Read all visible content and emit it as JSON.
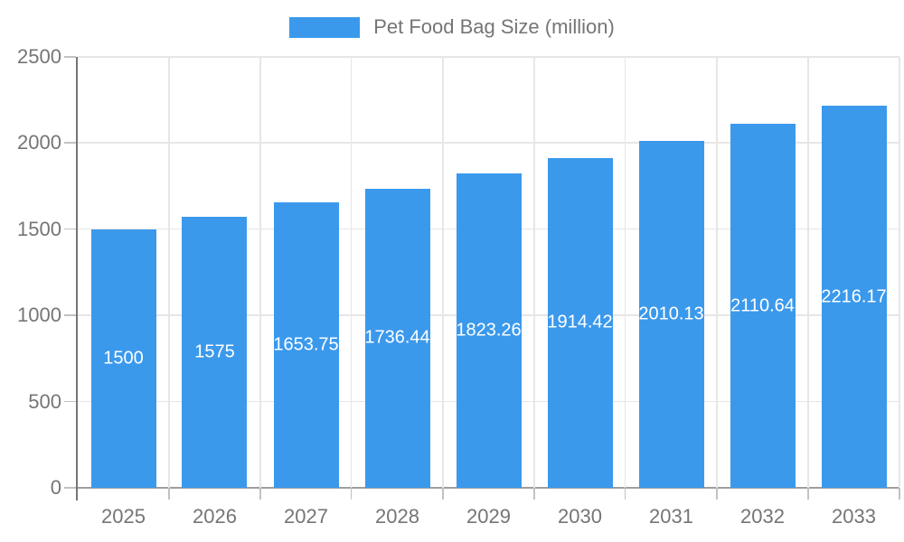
{
  "chart_data": {
    "type": "bar",
    "title": "",
    "legend": {
      "label": "Pet Food Bag Size (million)",
      "position": "top-center"
    },
    "categories": [
      "2025",
      "2026",
      "2027",
      "2028",
      "2029",
      "2030",
      "2031",
      "2032",
      "2033"
    ],
    "series": [
      {
        "name": "Pet Food Bag Size (million)",
        "values": [
          1500,
          1575,
          1653.75,
          1736.44,
          1823.26,
          1914.42,
          2010.13,
          2110.64,
          2216.17
        ]
      }
    ],
    "value_labels": [
      "1500",
      "1575",
      "1653.75",
      "1736.44",
      "1823.26",
      "1914.42",
      "2010.13",
      "2110.64",
      "2216.17"
    ],
    "xlabel": "",
    "ylabel": "",
    "ylim": [
      0,
      2500
    ],
    "yticks": [
      0,
      500,
      1000,
      1500,
      2000,
      2500
    ],
    "ytick_labels": [
      "0",
      "500",
      "1000",
      "1500",
      "2000",
      "2500"
    ],
    "grid": true,
    "colors": {
      "bar": "#3B99EC",
      "axis": "#757575",
      "baseline": "#9E9E9E",
      "grid": "#E6E6E6",
      "tick": "#C2C2C2",
      "text": "#757575",
      "bar_label": "#FFFFFF",
      "background": "#FFFFFF"
    }
  }
}
